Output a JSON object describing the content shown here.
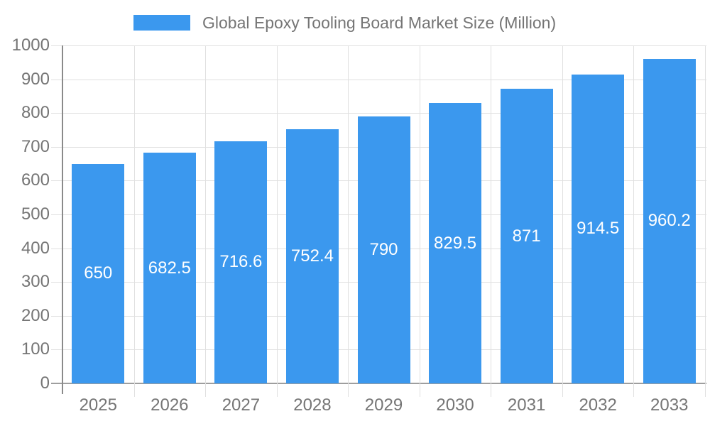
{
  "chart_data": {
    "type": "bar",
    "title": "Global Epoxy Tooling Board Market Size (Million)",
    "legend_position": "top",
    "categories": [
      "2025",
      "2026",
      "2027",
      "2028",
      "2029",
      "2030",
      "2031",
      "2032",
      "2033"
    ],
    "values": [
      650,
      682.5,
      716.6,
      752.4,
      790,
      829.5,
      871,
      914.5,
      960.2
    ],
    "value_labels": [
      "650",
      "682.5",
      "716.6",
      "752.4",
      "790",
      "829.5",
      "871",
      "914.5",
      "960.2"
    ],
    "xlabel": "",
    "ylabel": "",
    "ylim": [
      0,
      1000
    ],
    "yticks": [
      0,
      100,
      200,
      300,
      400,
      500,
      600,
      700,
      800,
      900,
      1000
    ],
    "grid": "on",
    "colors": {
      "bar": "#3b98ee",
      "bar_label": "#ffffff",
      "axis_text": "#757575",
      "grid_line": "#e0e0e0",
      "baseline": "#9e9e9e",
      "axis_line": "#8a8a8a",
      "background": "#ffffff"
    }
  }
}
